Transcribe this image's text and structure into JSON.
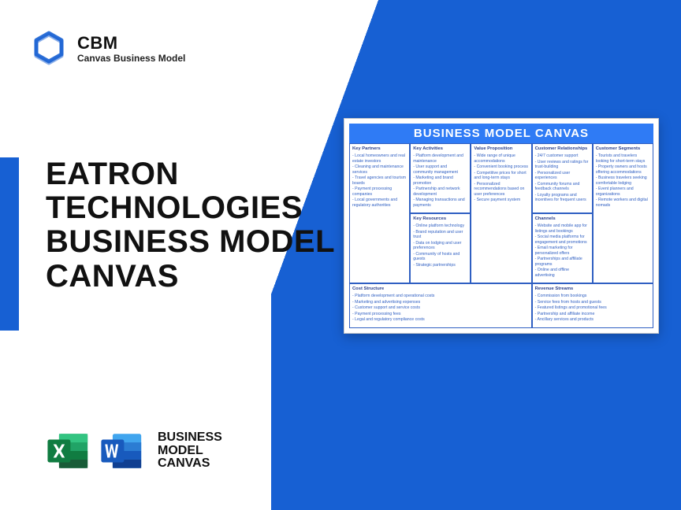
{
  "brand": {
    "title": "CBM",
    "subtitle": "Canvas Business Model",
    "logo_color": "#1760d3"
  },
  "main_title_lines": [
    "EATRON",
    "TECHNOLOGIES",
    "BUSINESS MODEL",
    "CANVAS"
  ],
  "footer": {
    "text_lines": [
      "BUSINESS",
      "MODEL",
      "CANVAS"
    ],
    "excel_color": "#107c41",
    "word_color": "#185abd"
  },
  "colors": {
    "accent": "#1760d3",
    "canvas_header_bg": "#2f7bf5",
    "canvas_text": "#2f5fc2",
    "background": "#ffffff"
  },
  "canvas": {
    "title": "BUSINESS MODEL CANVAS",
    "blocks": {
      "key_partners": {
        "header": "Key Partners",
        "items": [
          "Local homeowners and real estate investors",
          "Cleaning and maintenance services",
          "Travel agencies and tourism boards",
          "Payment processing companies",
          "Local governments and regulatory authorities"
        ]
      },
      "key_activities": {
        "header": "Key Activities",
        "items": [
          "Platform development and maintenance",
          "User support and community management",
          "Marketing and brand promotion",
          "Partnership and network development",
          "Managing transactions and payments"
        ]
      },
      "value_proposition": {
        "header": "Value Proposition",
        "items": [
          "Wide range of unique accommodations",
          "Convenient booking process",
          "Competitive prices for short and long-term stays",
          "Personalized recommendations based on user preferences",
          "Secure payment system"
        ]
      },
      "customer_relationships": {
        "header": "Customer Relationships",
        "items": [
          "24/7 customer support",
          "User reviews and ratings for trust-building",
          "Personalized user experiences",
          "Community forums and feedback channels",
          "Loyalty programs and incentives for frequent users"
        ]
      },
      "customer_segments": {
        "header": "Customer Segments",
        "items": [
          "Tourists and travelers looking for short-term stays",
          "Property owners and hosts offering accommodations",
          "Business travelers seeking comfortable lodging",
          "Event planners and organizations",
          "Remote workers and digital nomads"
        ]
      },
      "key_resources": {
        "header": "Key Resources",
        "items": [
          "Online platform technology",
          "Brand reputation and user trust",
          "Data on lodging and user preferences",
          "Community of hosts and guests",
          "Strategic partnerships"
        ]
      },
      "channels": {
        "header": "Channels",
        "items": [
          "Website and mobile app for listings and bookings",
          "Social media platforms for engagement and promotions",
          "Email marketing for personalized offers",
          "Partnerships and affiliate programs",
          "Online and offline advertising"
        ]
      },
      "cost_structure": {
        "header": "Cost Structure",
        "items": [
          "Platform development and operational costs",
          "Marketing and advertising expenses",
          "Customer support and service costs",
          "Payment processing fees",
          "Legal and regulatory compliance costs"
        ]
      },
      "revenue_streams": {
        "header": "Revenue Streams",
        "items": [
          "Commission from bookings",
          "Service fees from hosts and guests",
          "Featured listings and promotional fees",
          "Partnership and affiliate income",
          "Ancillary services and products"
        ]
      }
    }
  }
}
